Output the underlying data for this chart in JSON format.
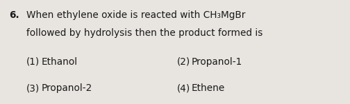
{
  "background_color": "#e8e5e0",
  "question_number": "6.",
  "question_line1": "When ethylene oxide is reacted with CH₃MgBr",
  "question_line2": "followed by hydrolysis then the product formed is",
  "options": [
    {
      "num": "(1)",
      "text": "Ethanol"
    },
    {
      "num": "(2)",
      "text": "Propanol-1"
    },
    {
      "num": "(3)",
      "text": "Propanol-2"
    },
    {
      "num": "(4)",
      "text": "Ethene"
    }
  ],
  "font_size_question": 9.8,
  "font_size_options": 9.8,
  "text_color": "#1a1a1a",
  "fig_width": 5.04,
  "fig_height": 1.51,
  "dpi": 100
}
